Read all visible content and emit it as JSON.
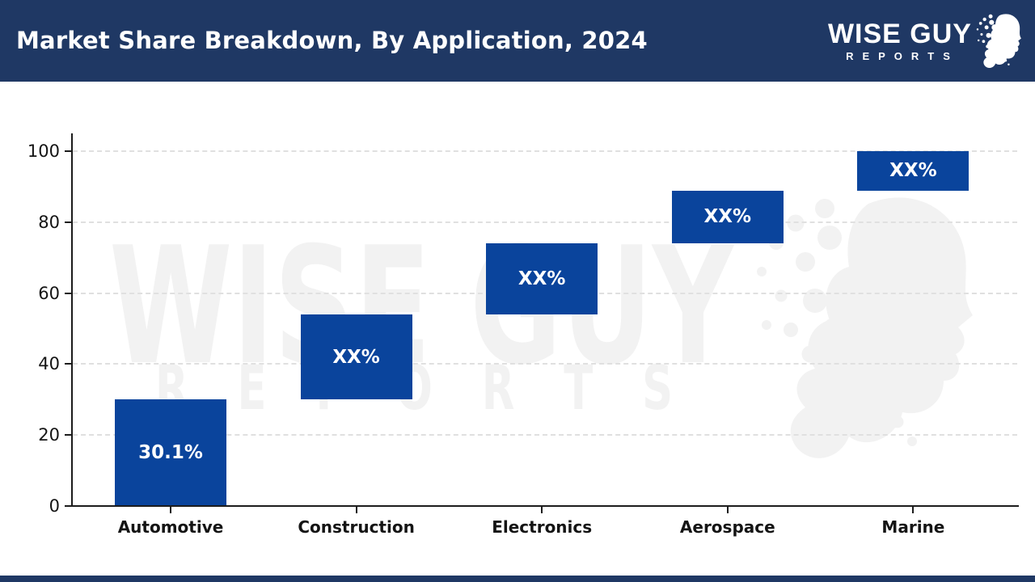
{
  "header": {
    "title": "Market Share Breakdown, By Application, 2024",
    "bg_color": "#1f3864",
    "logo": {
      "line1": "WISE GUY",
      "line2": "REPORTS"
    }
  },
  "watermark": {
    "line1": "WISE GUY",
    "line2": "REPORTS"
  },
  "chart_data": {
    "type": "bar",
    "subtype": "waterfall",
    "title": "Market Share Breakdown, By Application, 2024",
    "categories": [
      "Automotive",
      "Construction",
      "Electronics",
      "Aerospace",
      "Marine"
    ],
    "segments": [
      {
        "category": "Automotive",
        "start": 0,
        "end": 30.1,
        "label": "30.1%"
      },
      {
        "category": "Construction",
        "start": 30.1,
        "end": 53.9,
        "label": "XX%"
      },
      {
        "category": "Electronics",
        "start": 53.9,
        "end": 74.1,
        "label": "XX%"
      },
      {
        "category": "Aerospace",
        "start": 74.1,
        "end": 88.9,
        "label": "XX%"
      },
      {
        "category": "Marine",
        "start": 88.9,
        "end": 100,
        "label": "XX%"
      }
    ],
    "xlabel": "",
    "ylabel": "",
    "ylim": [
      0,
      100
    ],
    "yticks": [
      0,
      20,
      40,
      60,
      80,
      100
    ],
    "grid": "horizontal-dashed",
    "legend": "none",
    "bar_color": "#0a449c",
    "bar_label_color": "#ffffff"
  },
  "colors": {
    "header_bg": "#1f3864",
    "footer_bg": "#1f3864",
    "bar": "#0a449c",
    "axis": "#1c1c1c",
    "grid": "#e0e0e0",
    "watermark": "#f2f2f2"
  }
}
